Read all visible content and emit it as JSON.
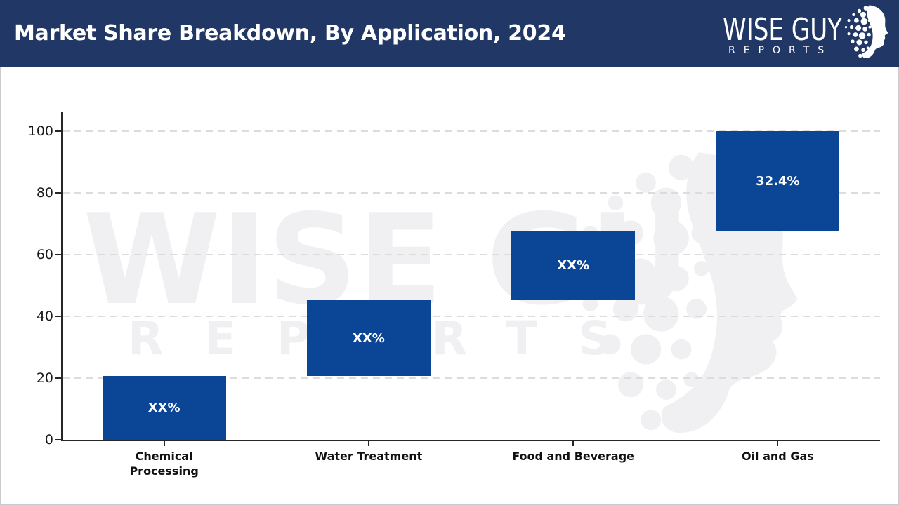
{
  "header": {
    "title": "Market Share Breakdown, By Application, 2024",
    "logo": {
      "brand_line1": "WISE GUY",
      "brand_line2": "REPORTS"
    }
  },
  "watermark": {
    "line1": "WISE GUY",
    "line2": "REPORTS"
  },
  "colors": {
    "header_bg": "#213765",
    "bar_blue": "#0a4596",
    "title_text": "#ffffff",
    "watermark_gray": "#f0f0f2",
    "gridline_gray": "#dcdcdc",
    "axis_black": "#262626"
  },
  "chart_data": {
    "type": "bar",
    "subtype": "waterfall",
    "title": "Market Share Breakdown, By Application, 2024",
    "xlabel": "",
    "ylabel": "",
    "unit": "percent",
    "ylim": [
      0,
      106
    ],
    "yticks": [
      0,
      20,
      40,
      60,
      80,
      100
    ],
    "grid": "dashed-horizontal",
    "legend": "none",
    "categories": [
      "Chemical Processing",
      "Water Treatment",
      "Food and Beverage",
      "Oil and Gas"
    ],
    "bars": [
      {
        "category": "Chemical\nProcessing",
        "start": 0,
        "end": 20.7,
        "value": 20.7,
        "label": "XX%"
      },
      {
        "category": "Water Treatment",
        "start": 20.7,
        "end": 45.2,
        "value": 24.5,
        "label": "XX%"
      },
      {
        "category": "Food and Beverage",
        "start": 45.2,
        "end": 67.6,
        "value": 22.4,
        "label": "XX%"
      },
      {
        "category": "Oil and Gas",
        "start": 67.6,
        "end": 100,
        "value": 32.4,
        "label": "32.4%"
      }
    ]
  }
}
